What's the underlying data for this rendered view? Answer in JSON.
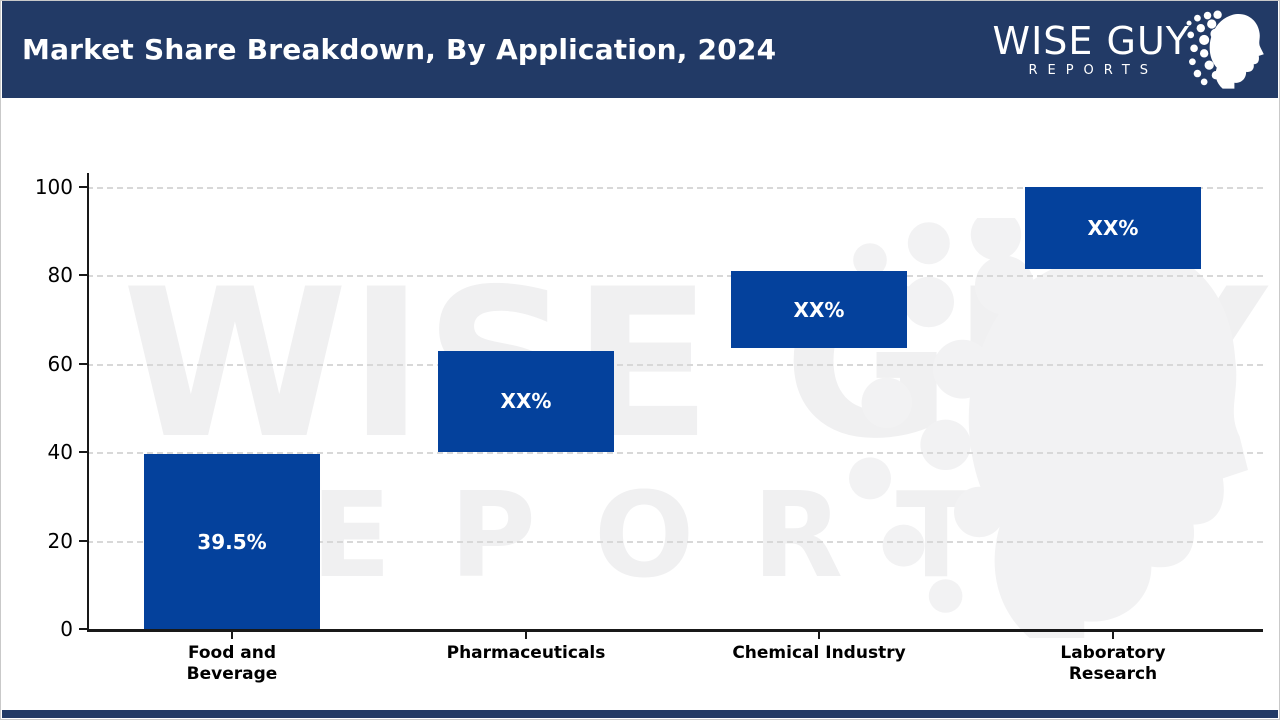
{
  "header": {
    "title": "Market Share Breakdown, By Application, 2024",
    "logo": {
      "line1": "WISE GUY",
      "line2": "REPORTS"
    }
  },
  "watermark": {
    "line1": "WISE GUY",
    "line2": "REPORTS"
  },
  "colors": {
    "header_bg": "#223a66",
    "footer_bg": "#223a66",
    "bar": "#04419c",
    "bar_label": "#ffffff",
    "gridline": "#d8d8d8",
    "axis": "#191919",
    "watermark": "#f0f0f1"
  },
  "chart_data": {
    "type": "bar",
    "subtype": "floating-waterfall",
    "title": "Market Share Breakdown, By Application, 2024",
    "categories": [
      "Food and Beverage",
      "Pharmaceuticals",
      "Chemical Industry",
      "Laboratory Research"
    ],
    "segments": [
      {
        "category": "Food and Beverage",
        "start": 0,
        "end": 39.5,
        "label": "39.5%"
      },
      {
        "category": "Pharmaceuticals",
        "start": 40,
        "end": 63,
        "label": "XX%"
      },
      {
        "category": "Chemical Industry",
        "start": 63.5,
        "end": 81,
        "label": "XX%"
      },
      {
        "category": "Laboratory Research",
        "start": 81.5,
        "end": 100,
        "label": "XX%"
      }
    ],
    "xlabel": "",
    "ylabel": "",
    "ylim": [
      0,
      100
    ],
    "yticks": [
      0,
      20,
      40,
      60,
      80,
      100
    ],
    "grid": "horizontal-dashed",
    "legend": "none",
    "bar_color": "#04419c",
    "label_color": "#ffffff"
  }
}
